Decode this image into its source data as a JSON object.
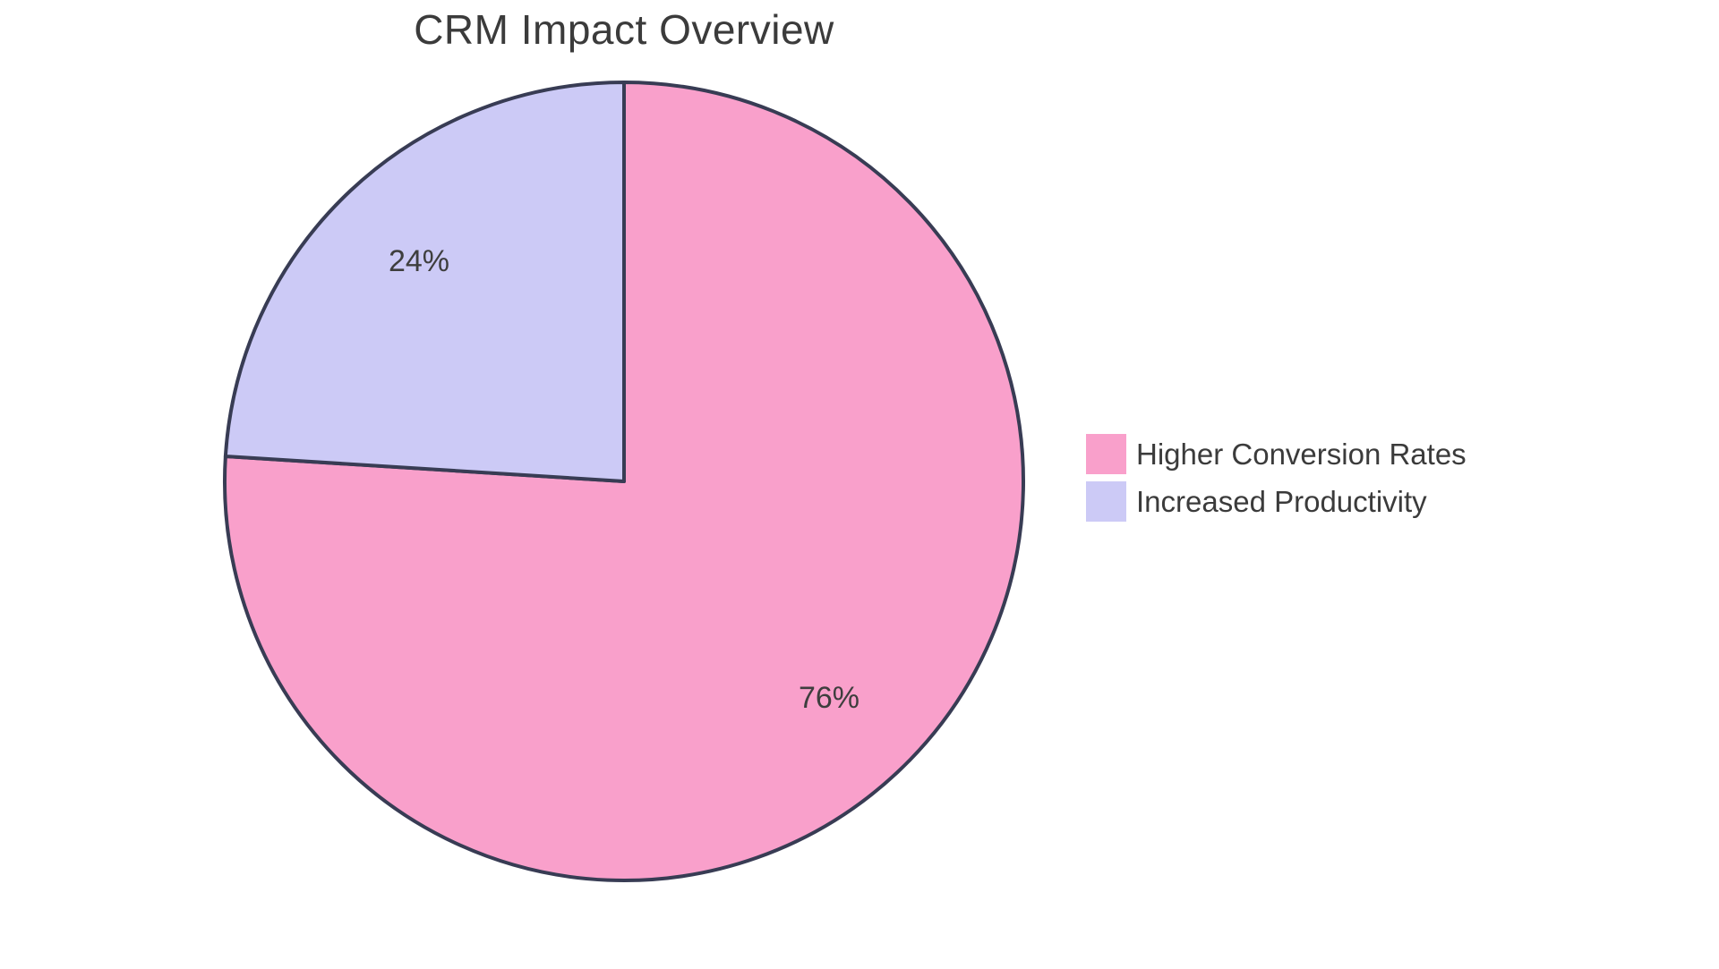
{
  "page": {
    "background_color": "#FFFFFF"
  },
  "chart_data": {
    "type": "pie",
    "title": "CRM Impact Overview",
    "slices": [
      {
        "label": "Higher Conversion Rates",
        "value": 76,
        "pct_label": "76%",
        "color": "#F9A0CB"
      },
      {
        "label": "Increased Productivity",
        "value": 24,
        "pct_label": "24%",
        "color": "#CCCAF6"
      }
    ],
    "start_angle_deg": 0,
    "direction": "clockwise",
    "border_color": "#383C54",
    "border_width": 4,
    "title_color": "#3B3B3B",
    "percent_label_color": "#3E3E3E",
    "legend_text_color": "#3B3B3B",
    "legend_position": "right",
    "grid": "off"
  }
}
